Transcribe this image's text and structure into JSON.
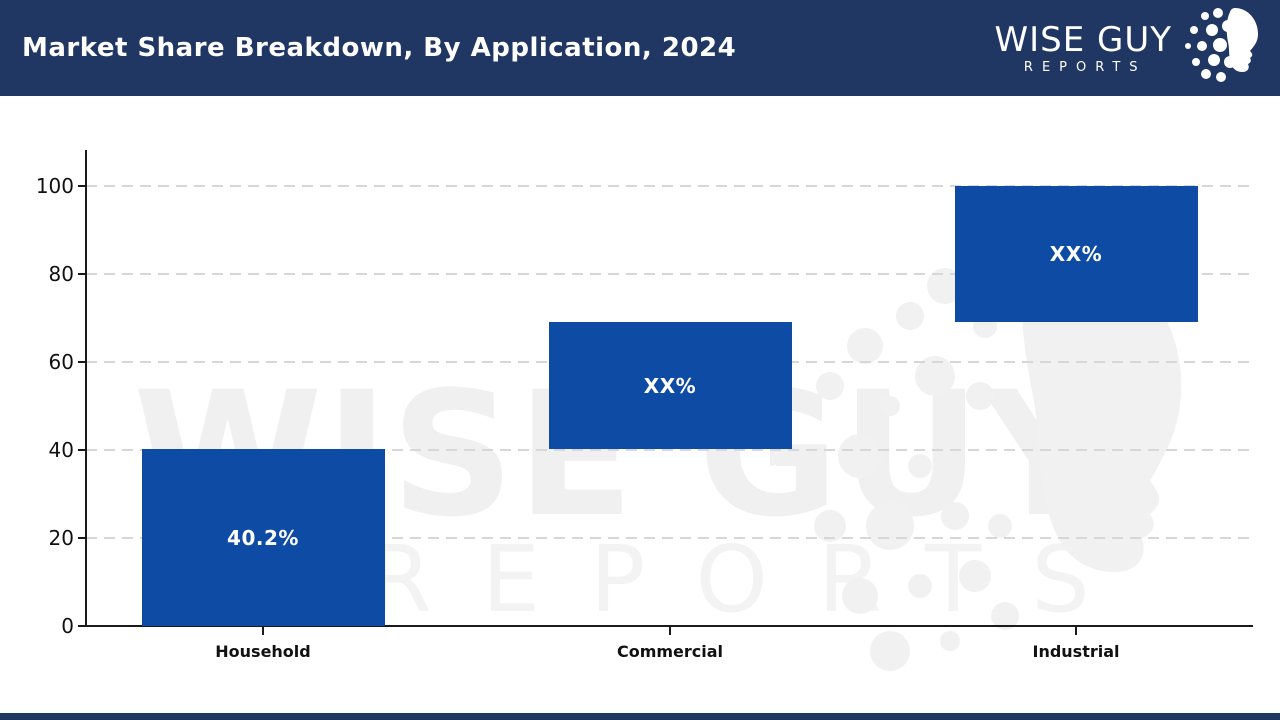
{
  "header": {
    "title": "Market Share Breakdown, By Application, 2024",
    "logo": {
      "line1": "WISE GUY",
      "line2": "REPORTS"
    }
  },
  "chart_data": {
    "type": "bar",
    "variant": "stacked-waterfall-percentage",
    "title": "Market Share Breakdown, By Application, 2024",
    "categories": [
      "Household",
      "Commercial",
      "Industrial"
    ],
    "segments": [
      {
        "category": "Household",
        "start": 0,
        "end": 40.2,
        "label": "40.2%"
      },
      {
        "category": "Commercial",
        "start": 40.2,
        "end": 69,
        "label": "XX%"
      },
      {
        "category": "Industrial",
        "start": 69,
        "end": 100,
        "label": "XX%"
      }
    ],
    "yticks": [
      0,
      20,
      40,
      60,
      80,
      100
    ],
    "ylim": [
      0,
      108
    ],
    "xlabel": "",
    "ylabel": "",
    "grid": "dashed-horizontal",
    "legend": "none",
    "bar_color": "#0d4ba4",
    "watermark": {
      "line1": "WISE GUY",
      "line2": "REPORTS"
    }
  },
  "colors": {
    "header_bg": "#213763",
    "footer_bg": "#213763",
    "bar": "#0d4ba4",
    "grid": "#d7d7d7",
    "axis": "#1a1a1a",
    "title_text": "#ffffff",
    "bar_label_text": "#ffffff",
    "watermark": "#f0f0f0"
  }
}
